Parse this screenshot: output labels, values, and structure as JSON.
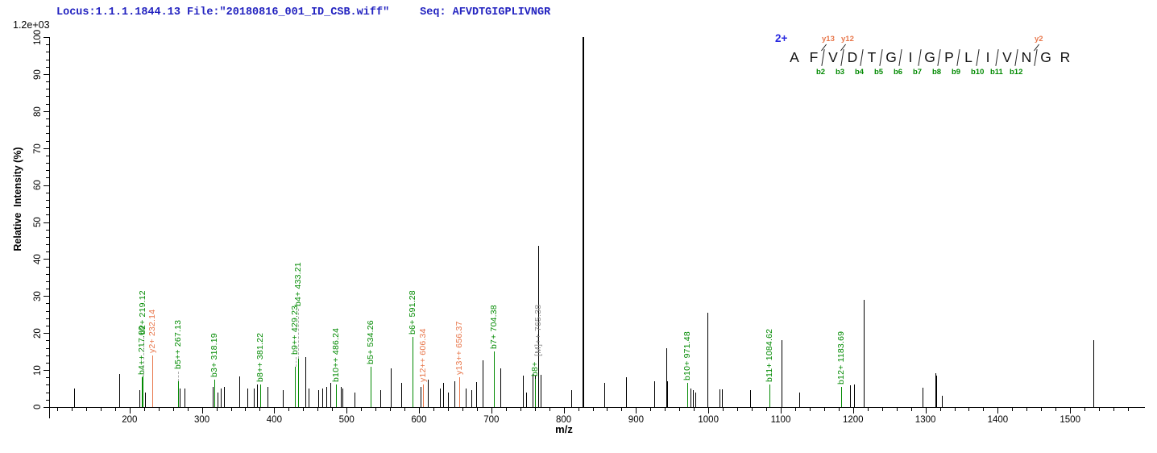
{
  "header": {
    "locus_file": "Locus:1.1.1.1844.13 File:\"20180816_001_ID_CSB.wiff\"",
    "seq_label": "Seq: AFVDTGIGPLIVNGR",
    "scale_note": "1.2e+03"
  },
  "colors": {
    "b_ion": "#028a02",
    "y_ion": "#e8764a",
    "precursor_line": "#000000",
    "precursor_label": "#8f8f8f",
    "peak": "#000000",
    "header_blue": "#2323c0"
  },
  "chart_data": {
    "type": "bar",
    "title": "",
    "xlabel": "m/z",
    "ylabel": "Relative  Intensity (%)",
    "xlim": [
      90,
      1600
    ],
    "ylim": [
      0,
      100
    ],
    "x_tick_labels": [
      200,
      300,
      400,
      500,
      600,
      700,
      800,
      900,
      1000,
      1100,
      1200,
      1300,
      1400,
      1500
    ],
    "x_minor_step": 20,
    "y_tick_labels": [
      0,
      10,
      20,
      30,
      40,
      50,
      60,
      70,
      80,
      90,
      100
    ],
    "y_minor_step": 2,
    "grid": false,
    "legend": "none",
    "labeled_peaks": [
      {
        "mz": 217.09,
        "intensity": 8,
        "ion": "b",
        "label": "b4++ 217.09"
      },
      {
        "mz": 219.12,
        "intensity": 8.5,
        "ion": "b",
        "label": "b2+ 219.12",
        "label_at": 19
      },
      {
        "mz": 232.14,
        "intensity": 14,
        "ion": "y",
        "label": "y2+ 232.14"
      },
      {
        "mz": 267.13,
        "intensity": 7,
        "ion": "b",
        "label": "b5++ 267.13",
        "label_at": 9.5
      },
      {
        "mz": 318.19,
        "intensity": 7.5,
        "ion": "b",
        "label": "b3+ 318.19"
      },
      {
        "mz": 381.22,
        "intensity": 6,
        "ion": "b",
        "label": "b8++ 381.22"
      },
      {
        "mz": 429.23,
        "intensity": 11,
        "ion": "b",
        "label": "b9++ 429.23",
        "label_at": 13.5
      },
      {
        "mz": 433.21,
        "intensity": 13,
        "ion": "b",
        "label": "b4+ 433.21",
        "label_at": 26.5
      },
      {
        "mz": 486.24,
        "intensity": 6,
        "ion": "b",
        "label": "b10++ 486.24"
      },
      {
        "mz": 534.26,
        "intensity": 11,
        "ion": "b",
        "label": "b5+ 534.26"
      },
      {
        "mz": 591.28,
        "intensity": 19,
        "ion": "b",
        "label": "b6+ 591.28"
      },
      {
        "mz": 606.34,
        "intensity": 6,
        "ion": "y",
        "label": "y12++ 606.34"
      },
      {
        "mz": 656.37,
        "intensity": 8,
        "ion": "y",
        "label": "y13++ 656.37"
      },
      {
        "mz": 704.38,
        "intensity": 15,
        "ion": "b",
        "label": "b7+ 704.38"
      },
      {
        "mz": 761.39,
        "intensity": 7.6,
        "ion": "b",
        "label": "b8+"
      },
      {
        "mz": 765.38,
        "intensity": 43.5,
        "ion": "precursor",
        "label": "[M]++ 765.38",
        "label_at": 13
      },
      {
        "mz": 971.48,
        "intensity": 6.5,
        "ion": "b",
        "label": "b10+ 971.48"
      },
      {
        "mz": 1084.62,
        "intensity": 6,
        "ion": "b",
        "label": "b11+ 1084.62"
      },
      {
        "mz": 1183.69,
        "intensity": 5.5,
        "ion": "b",
        "label": "b12+ 1183.69"
      }
    ],
    "unlabeled_peaks": [
      [
        124,
        5
      ],
      [
        186,
        9
      ],
      [
        214,
        4.5
      ],
      [
        222,
        4
      ],
      [
        270,
        5
      ],
      [
        277,
        5
      ],
      [
        316,
        5.5
      ],
      [
        322,
        4
      ],
      [
        327,
        5
      ],
      [
        331,
        5.5
      ],
      [
        352,
        8.3
      ],
      [
        363,
        5
      ],
      [
        372,
        5
      ],
      [
        377,
        6
      ],
      [
        391,
        5.5
      ],
      [
        412,
        4.5
      ],
      [
        444,
        13.5
      ],
      [
        448,
        5
      ],
      [
        461,
        4.5
      ],
      [
        467,
        5
      ],
      [
        473,
        5.5
      ],
      [
        478,
        6.5
      ],
      [
        492,
        5.5
      ],
      [
        495,
        5
      ],
      [
        512,
        4
      ],
      [
        547,
        4.5
      ],
      [
        562,
        10.5
      ],
      [
        576,
        6.5
      ],
      [
        603,
        5.5
      ],
      [
        613,
        7.5
      ],
      [
        630,
        5
      ],
      [
        634,
        6.5
      ],
      [
        641,
        4
      ],
      [
        650,
        7
      ],
      [
        665,
        5
      ],
      [
        673,
        4.5
      ],
      [
        680,
        6.7
      ],
      [
        689,
        12.7
      ],
      [
        713,
        10.5
      ],
      [
        744,
        8.6
      ],
      [
        749,
        4
      ],
      [
        758,
        9
      ],
      [
        760.5,
        8.5
      ],
      [
        769,
        8.8
      ],
      [
        811,
        4.6
      ],
      [
        827,
        100
      ],
      [
        857,
        6.5
      ],
      [
        887,
        8
      ],
      [
        926,
        7
      ],
      [
        942,
        16
      ],
      [
        944,
        7
      ],
      [
        976,
        5
      ],
      [
        979,
        4.5
      ],
      [
        982,
        4
      ],
      [
        999,
        25.5
      ],
      [
        1016,
        4.7
      ],
      [
        1019,
        4.7
      ],
      [
        1058,
        4.6
      ],
      [
        1102,
        18
      ],
      [
        1126,
        4
      ],
      [
        1196,
        5.8
      ],
      [
        1202,
        6
      ],
      [
        1215,
        29
      ],
      [
        1297,
        5.2
      ],
      [
        1314,
        9.2
      ],
      [
        1316,
        8.5
      ],
      [
        1323,
        3.1
      ],
      [
        1533,
        18
      ]
    ]
  },
  "sequence_panel": {
    "charge_label": "2+",
    "residues": [
      "A",
      "F",
      "V",
      "D",
      "T",
      "G",
      "I",
      "G",
      "P",
      "L",
      "I",
      "V",
      "N",
      "G",
      "R"
    ],
    "cleavages": [
      {
        "site": 2,
        "b": "b2",
        "y": "y13"
      },
      {
        "site": 3,
        "b": "b3",
        "y": "y12"
      },
      {
        "site": 4,
        "b": "b4"
      },
      {
        "site": 5,
        "b": "b5"
      },
      {
        "site": 6,
        "b": "b6"
      },
      {
        "site": 7,
        "b": "b7"
      },
      {
        "site": 8,
        "b": "b8"
      },
      {
        "site": 9,
        "b": "b9"
      },
      {
        "site": 10,
        "b": "b10"
      },
      {
        "site": 11,
        "b": "b11"
      },
      {
        "site": 12,
        "b": "b12"
      },
      {
        "site": 13,
        "y": "y2"
      }
    ]
  }
}
